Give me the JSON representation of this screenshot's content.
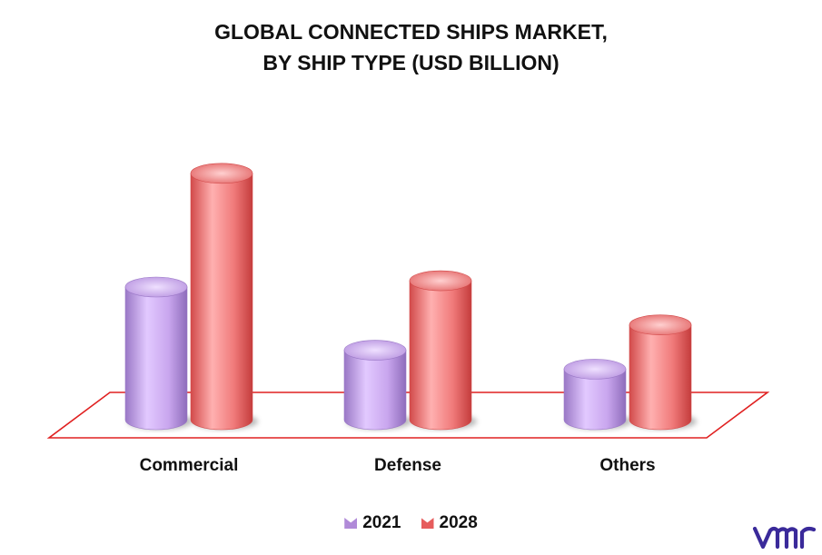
{
  "title_lines": [
    "GLOBAL CONNECTED SHIPS MARKET,",
    "BY SHIP TYPE (USD BILLION)"
  ],
  "colors": {
    "series_2021": "#c9a6ee",
    "series_2021_dark": "#9a78c6",
    "series_2028": "#f07a7a",
    "series_2028_dark": "#d24a4a",
    "floor_line": "#e02020",
    "logo": "#3a2a9a"
  },
  "logo_text": "vmr",
  "chart_data": {
    "type": "bar",
    "categories": [
      "Commercial",
      "Defense",
      "Others"
    ],
    "series": [
      {
        "name": "2021",
        "values": [
          2.1,
          1.1,
          0.8
        ]
      },
      {
        "name": "2028",
        "values": [
          3.9,
          2.2,
          1.5
        ]
      }
    ],
    "ylim": [
      0,
      4.2
    ],
    "grid": false,
    "legend_position": "bottom"
  }
}
